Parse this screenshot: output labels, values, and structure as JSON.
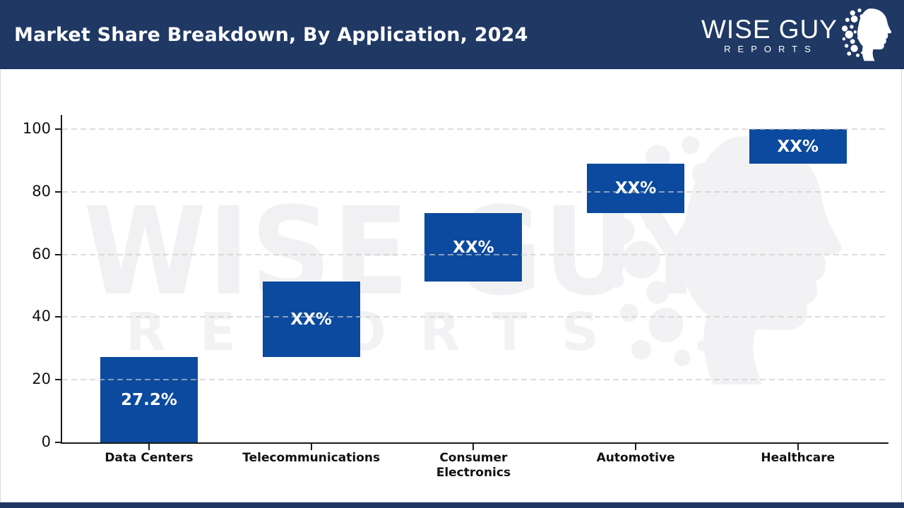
{
  "header": {
    "title": "Market Share Breakdown, By Application, 2024",
    "bg_color": "#1f3864",
    "logo": {
      "line1": "WISE GUY",
      "line2": "REPORTS"
    }
  },
  "watermark": {
    "line1": "WISE GUY",
    "line2": "REPORTS"
  },
  "footer": {
    "bg_color": "#1f3864"
  },
  "chart_data": {
    "type": "bar",
    "subtype": "waterfall",
    "title": "Market Share Breakdown, By Application, 2024",
    "categories": [
      "Data Centers",
      "Telecommunications",
      "Consumer\nElectronics",
      "Automotive",
      "Healthcare"
    ],
    "segments": [
      {
        "category": "Data Centers",
        "start": 0,
        "end": 27.2,
        "label": "27.2%"
      },
      {
        "category": "Telecommunications",
        "start": 27.2,
        "end": 51.3,
        "label": "XX%"
      },
      {
        "category": "Consumer Electronics",
        "start": 51.3,
        "end": 73.2,
        "label": "XX%"
      },
      {
        "category": "Automotive",
        "start": 73.2,
        "end": 88.9,
        "label": "XX%"
      },
      {
        "category": "Healthcare",
        "start": 88.9,
        "end": 100,
        "label": "XX%"
      }
    ],
    "yticks": [
      0,
      20,
      40,
      60,
      80,
      100
    ],
    "ylim": [
      0,
      104.5
    ],
    "xlabel": "",
    "ylabel": "",
    "bar_color": "#0b4a9e",
    "grid": "horizontal-dashed-over-bars",
    "legend": "none"
  }
}
